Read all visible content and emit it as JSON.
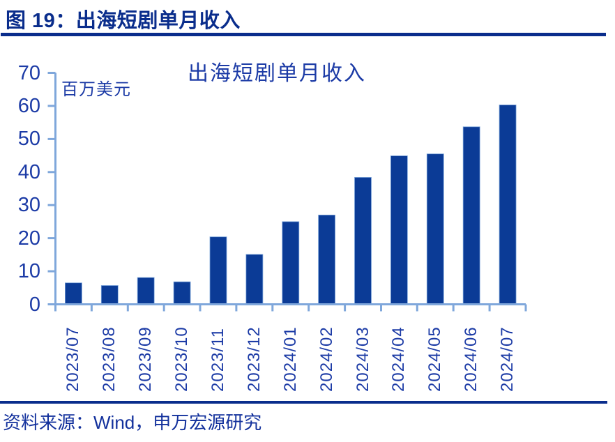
{
  "header": {
    "title": "图 19：出海短剧单月收入"
  },
  "footer": {
    "source": "资料来源：Wind，申万宏源研究"
  },
  "colors": {
    "header_navy": "#0a2d8c",
    "label_blue": "#1c3ba6",
    "footer_blue": "#12309c",
    "bar_fill": "#0b3b96",
    "axis_light_blue": "#7fa7db"
  },
  "chart_data": {
    "type": "bar",
    "title": "出海短剧单月收入",
    "unit_label": "百万美元",
    "xlabel": "",
    "ylabel": "百万美元",
    "categories": [
      "2023/07",
      "2023/08",
      "2023/09",
      "2023/10",
      "2023/11",
      "2023/12",
      "2024/01",
      "2024/02",
      "2024/03",
      "2024/04",
      "2024/05",
      "2024/06",
      "2024/07"
    ],
    "values": [
      6.5,
      5.7,
      8.1,
      6.8,
      20.4,
      15.1,
      25.0,
      27.0,
      38.4,
      44.9,
      45.5,
      53.7,
      60.3
    ],
    "ylim": [
      0,
      70
    ],
    "yticks": [
      0,
      10,
      20,
      30,
      40,
      50,
      60,
      70
    ],
    "grid": false,
    "legend": false,
    "bar_color": "#0b3b96",
    "axis_color": "#7fa7db"
  }
}
